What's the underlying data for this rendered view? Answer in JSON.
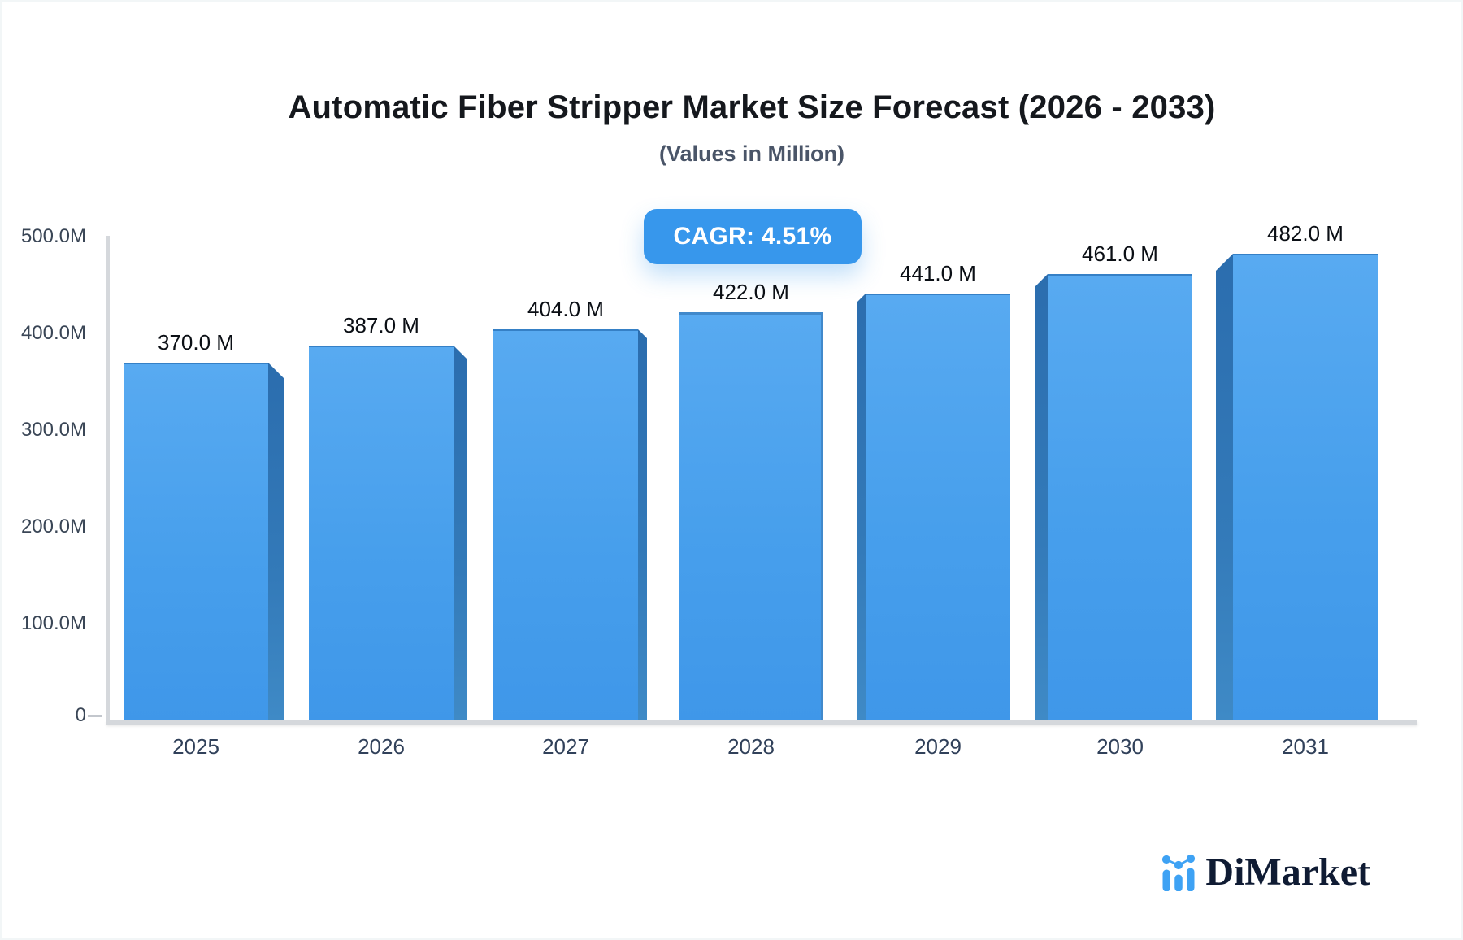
{
  "header": {
    "title": "Automatic Fiber Stripper Market Size Forecast (2026 - 2033)",
    "subtitle": "(Values in Million)"
  },
  "badge": {
    "label": "CAGR: 4.51%",
    "bg_color": "#3797ec",
    "text_color": "#ffffff"
  },
  "logo": {
    "text": "DiMarket",
    "icon": "bar-chart-icon",
    "icon_color": "#3ea2f4",
    "text_color": "#0f1b33"
  },
  "chart_data": {
    "type": "bar",
    "title": "Automatic Fiber Stripper Market Size Forecast (2026 - 2033)",
    "subtitle": "(Values in Million)",
    "unit": "Million",
    "categories": [
      "2025",
      "2026",
      "2027",
      "2028",
      "2029",
      "2030",
      "2031"
    ],
    "values": [
      370,
      387,
      404,
      422,
      441,
      461,
      482
    ],
    "value_labels": [
      "370.0 M",
      "387.0 M",
      "404.0 M",
      "422.0 M",
      "441.0 M",
      "461.0 M",
      "482.0 M"
    ],
    "y_ticks": [
      {
        "label": "500.0M",
        "value": 500
      },
      {
        "label": "400.0M",
        "value": 400
      },
      {
        "label": "300.0M",
        "value": 300
      },
      {
        "label": "200.0M",
        "value": 200
      },
      {
        "label": "100.0M",
        "value": 100
      },
      {
        "label": "0",
        "value": 0
      }
    ],
    "ylim": [
      0,
      500
    ],
    "xlabel": "",
    "ylabel": "",
    "grid": "off",
    "legend": "none",
    "bar_color": "#47a0ec",
    "bar_side_color": "#2e74b6",
    "style": "3d-perspective-center"
  }
}
